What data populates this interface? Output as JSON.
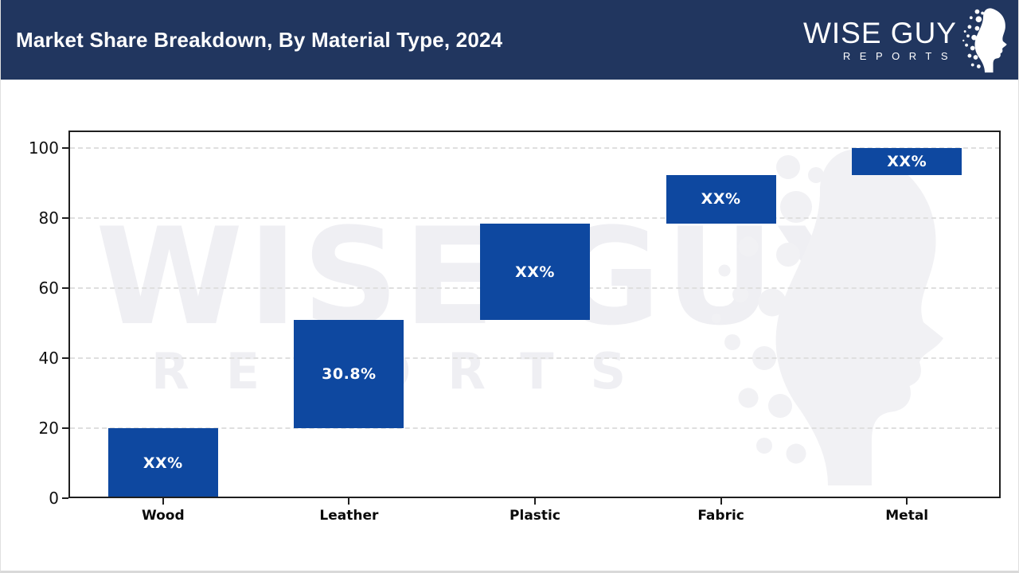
{
  "header": {
    "title": "Market Share Breakdown, By Material Type, 2024",
    "bg_color": "#21365f",
    "logo": {
      "line1": "WISE GUY",
      "line2": "REPORTS"
    }
  },
  "watermark": {
    "line1": "WISE GUY",
    "line2": "REPORTS"
  },
  "chart_data": {
    "type": "bar",
    "subtype": "floating-waterfall",
    "title": "Market Share Breakdown, By Material Type, 2024",
    "categories": [
      "Wood",
      "Leather",
      "Plastic",
      "Fabric",
      "Metal"
    ],
    "segments": [
      {
        "category": "Wood",
        "start": 0,
        "end": 20,
        "value": 20,
        "label": "XX%"
      },
      {
        "category": "Leather",
        "start": 20,
        "end": 50.8,
        "value": 30.8,
        "label": "30.8%"
      },
      {
        "category": "Plastic",
        "start": 50.8,
        "end": 78.4,
        "value": 27.6,
        "label": "XX%"
      },
      {
        "category": "Fabric",
        "start": 78.4,
        "end": 92.3,
        "value": 13.9,
        "label": "XX%"
      },
      {
        "category": "Metal",
        "start": 92.3,
        "end": 100,
        "value": 7.7,
        "label": "XX%"
      }
    ],
    "yticks": [
      0,
      20,
      40,
      60,
      80,
      100
    ],
    "ylim": [
      0,
      105
    ],
    "xlabel": "",
    "ylabel": "",
    "grid": "horizontal-dashed",
    "legend": "none",
    "bar_color": "#0e48a0",
    "label_color": "#ffffff",
    "axis_color": "#1f1f1f",
    "grid_color": "#dfdfdf"
  }
}
